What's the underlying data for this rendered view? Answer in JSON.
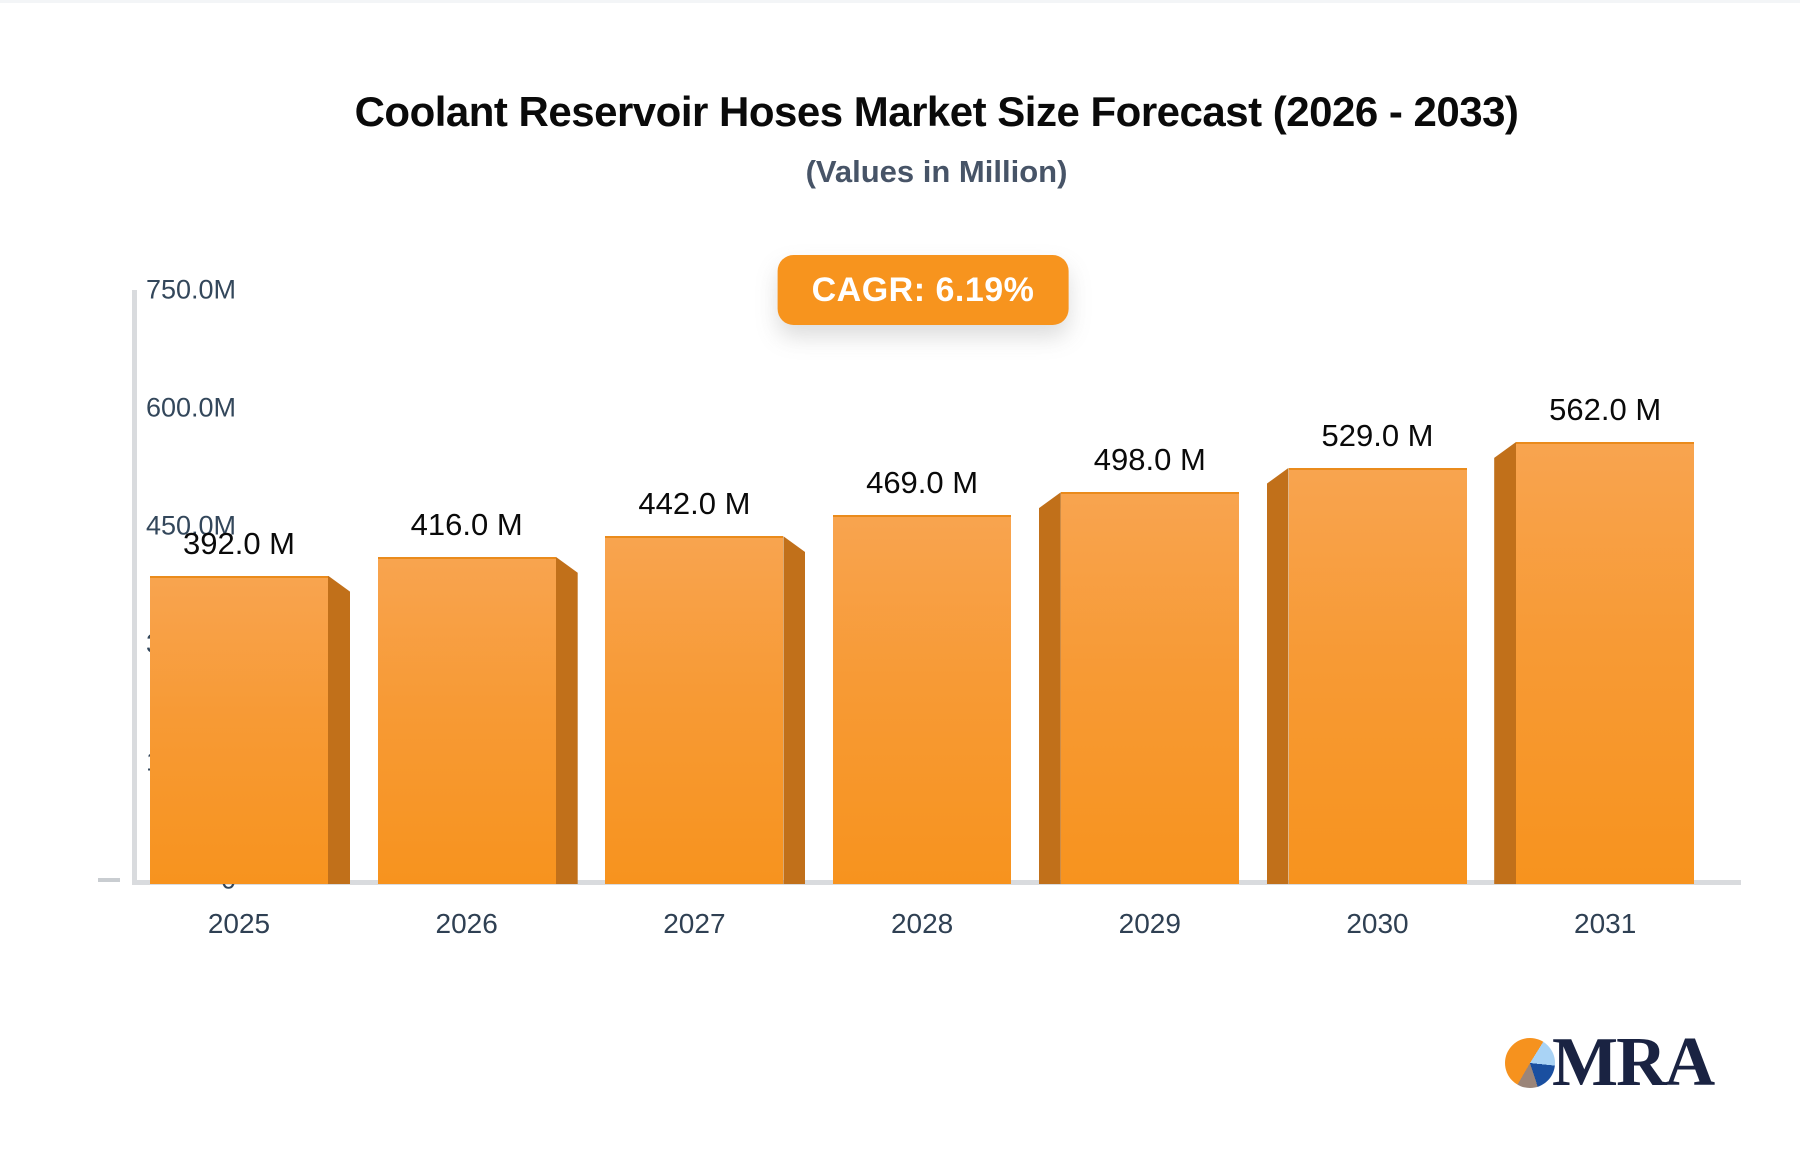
{
  "page": {
    "title": "Coolant Reservoir Hoses Market Size Forecast (2026 - 2033)",
    "subtitle": "(Values in Million)",
    "cagr_label": "CAGR: 6.19%"
  },
  "chart_data": {
    "type": "bar",
    "title": "Coolant Reservoir Hoses Market Size Forecast (2026 - 2033)",
    "subtitle": "(Values in Million)",
    "unit": "Million",
    "categories": [
      "2025",
      "2026",
      "2027",
      "2028",
      "2029",
      "2030",
      "2031"
    ],
    "values": [
      392.0,
      416.0,
      442.0,
      469.0,
      498.0,
      529.0,
      562.0
    ],
    "value_labels": [
      "392.0 M",
      "416.0 M",
      "442.0 M",
      "469.0 M",
      "498.0 M",
      "529.0 M",
      "562.0 M"
    ],
    "yticks": [
      {
        "label": "750.0M",
        "value": 750
      },
      {
        "label": "600.0M",
        "value": 600
      },
      {
        "label": "450.0M",
        "value": 450
      },
      {
        "label": "300.0M",
        "value": 300
      },
      {
        "label": "150.0M",
        "value": 150
      },
      {
        "label": "0",
        "value": 0
      }
    ],
    "ylim": [
      0,
      750
    ],
    "grid": false,
    "legend": "none",
    "annotations": [
      "CAGR: 6.19%"
    ]
  },
  "colors": {
    "bar_top": "#F8A44F",
    "bar_bottom": "#F7931E",
    "bar_side": "#C1701A",
    "badge_bg": "#F7941E",
    "axis_line": "#D9DBDE",
    "tick_text": "#33475B",
    "value_text": "#0A0A0A",
    "subtitle_text": "#475467",
    "logo_navy": "#1A2342",
    "pie_orange": "#F6921E",
    "pie_light_blue": "#A9D3F5",
    "pie_dark_blue": "#1A4FA0",
    "pie_brown": "#9B8579"
  },
  "branding": {
    "logo_text": "MRA"
  }
}
